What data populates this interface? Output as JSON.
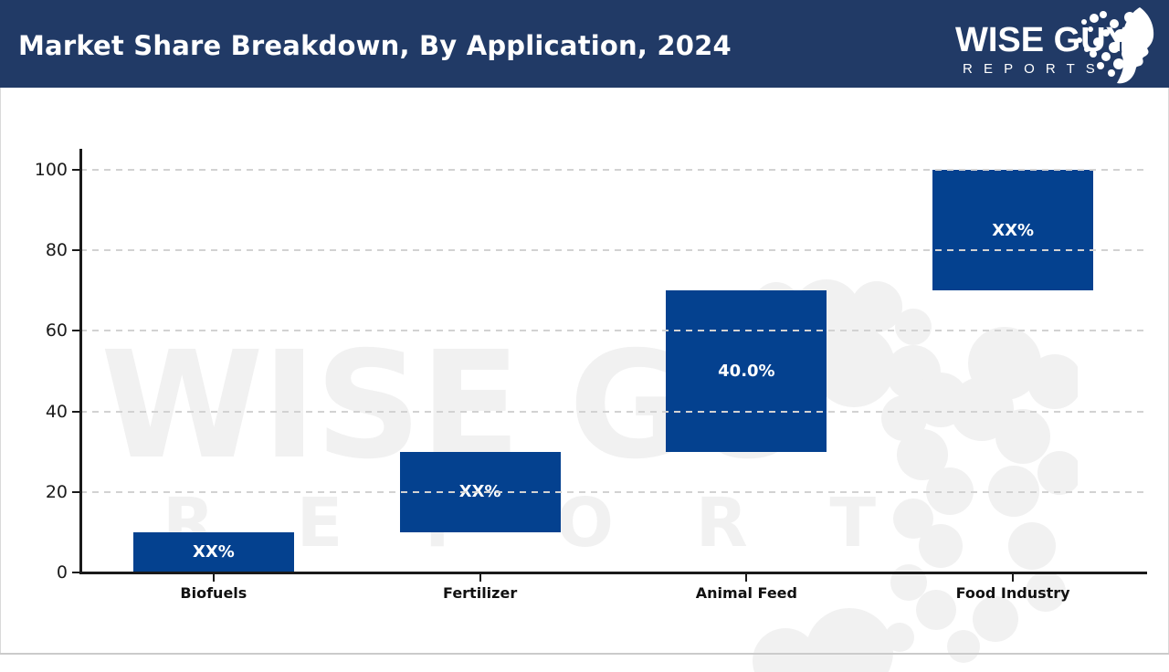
{
  "header": {
    "title": "Market Share Breakdown, By Application, 2024",
    "bg_color": "#213a66",
    "logo": {
      "name": "WISE GUY",
      "reports": "R E P O R T S"
    }
  },
  "watermark": {
    "line1": "WISE GU",
    "line2": "R E P O R T"
  },
  "chart_data": {
    "type": "bar",
    "variant": "floating-waterfall",
    "title": "Market Share Breakdown, By Application, 2024",
    "categories": [
      "Biofuels",
      "Fertilizer",
      "Animal Feed",
      "Food Industry"
    ],
    "series": [
      {
        "name": "Market Share",
        "segments": [
          {
            "category": "Biofuels",
            "start": 0,
            "end": 10,
            "label": "XX%"
          },
          {
            "category": "Fertilizer",
            "start": 10,
            "end": 30,
            "label": "XX%"
          },
          {
            "category": "Animal Feed",
            "start": 30,
            "end": 70,
            "label": "40.0%"
          },
          {
            "category": "Food Industry",
            "start": 70,
            "end": 100,
            "label": "XX%"
          }
        ]
      }
    ],
    "ylim": [
      0,
      100
    ],
    "yticks": [
      0,
      20,
      40,
      60,
      80,
      100
    ],
    "xlabel": "",
    "ylabel": "",
    "grid": "dashed-horizontal-over-bars",
    "legend": "none",
    "bar_color": "#04418f",
    "bar_label_color": "#ffffff",
    "grid_color": "#d2d2d2",
    "axis_color": "#1a1a1a"
  }
}
